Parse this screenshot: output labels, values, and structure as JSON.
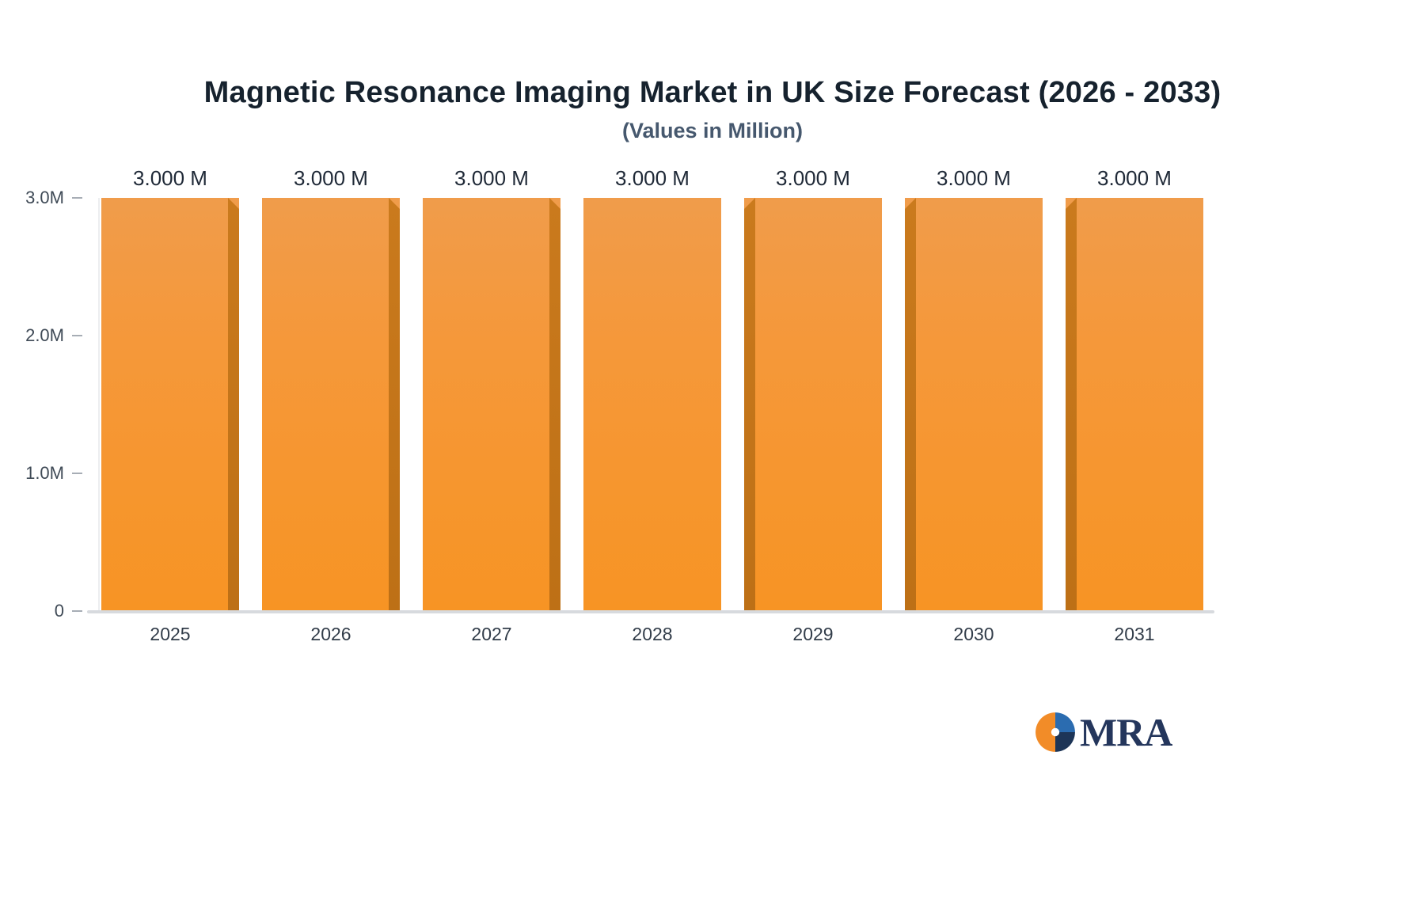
{
  "title": "Magnetic Resonance Imaging Market in UK Size Forecast (2026 - 2033)",
  "subtitle": "(Values in Million)",
  "logo": {
    "text": "MRA"
  },
  "chart_data": {
    "type": "bar",
    "title": "Magnetic Resonance Imaging Market in UK Size Forecast (2026 - 2033)",
    "subtitle": "(Values in Million)",
    "categories": [
      "2025",
      "2026",
      "2027",
      "2028",
      "2029",
      "2030",
      "2031"
    ],
    "values": [
      3.0,
      3.0,
      3.0,
      3.0,
      3.0,
      3.0,
      3.0
    ],
    "value_labels": [
      "3.000 M",
      "3.000 M",
      "3.000 M",
      "3.000 M",
      "3.000 M",
      "3.000 M",
      "3.000 M"
    ],
    "xlabel": "",
    "ylabel": "",
    "ylim": [
      0,
      3.0
    ],
    "yticks": [
      {
        "label": "0",
        "value": 0
      },
      {
        "label": "1.0M",
        "value": 1.0
      },
      {
        "label": "2.0M",
        "value": 2.0
      },
      {
        "label": "3.0M",
        "value": 3.0
      }
    ],
    "grid": false,
    "legend": "none",
    "bar_face_color": "#F7941E",
    "bar_face_color_top": "#F09C4B",
    "bar_side_color": "#C3761A",
    "axis_line_color": "#D7DADE",
    "title_color": "#16222E",
    "subtitle_color": "#46586E",
    "logo_colors": {
      "orange": "#F28C28",
      "blue": "#2B6CB0",
      "navy": "#1D3557",
      "text": "#24365C"
    }
  }
}
